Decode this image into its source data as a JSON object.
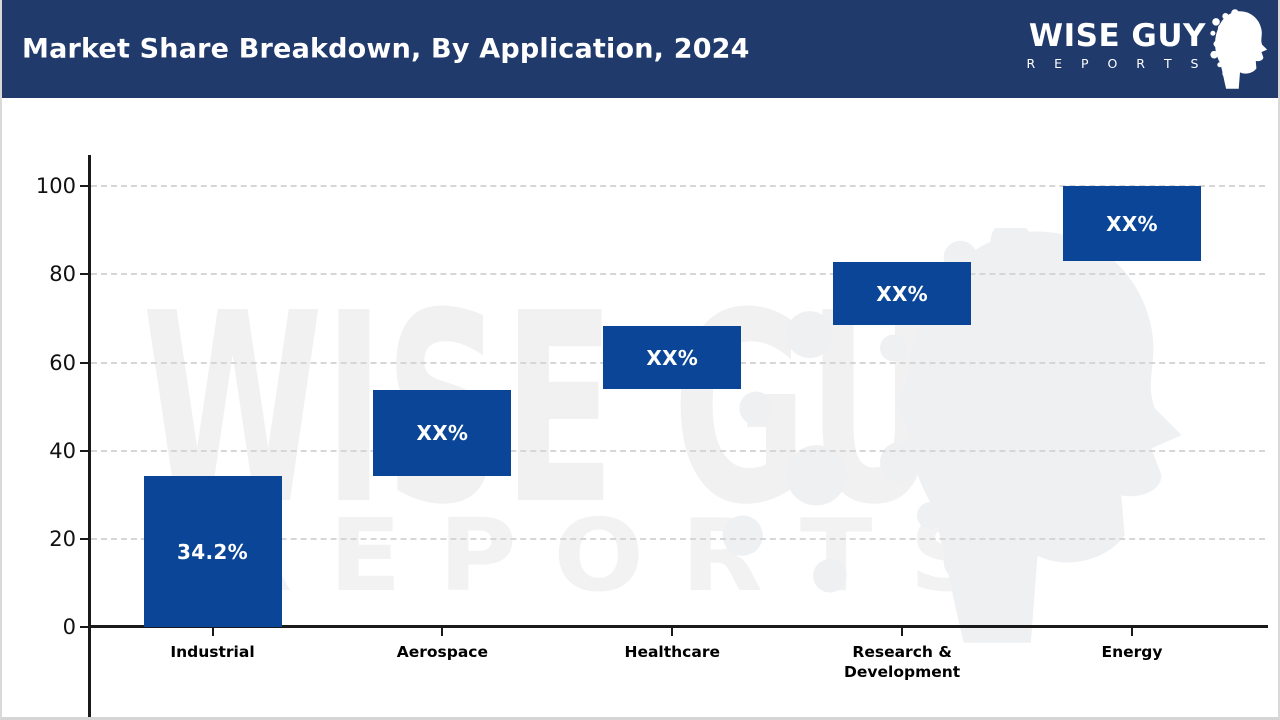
{
  "header": {
    "title": "Market Share Breakdown, By Application, 2024",
    "bg_color": "#213a6c",
    "logo": {
      "wordmark": "WISE GUY",
      "reports": "R E P O R T S"
    }
  },
  "watermark": {
    "line1": "WISE GUY",
    "line2": "R E P O R T S"
  },
  "chart_data": {
    "type": "bar",
    "subtype": "waterfall",
    "title": "Market Share Breakdown, By Application, 2024",
    "xlabel": "",
    "ylabel": "",
    "ylim": [
      0,
      100
    ],
    "yticks": [
      0,
      20,
      40,
      60,
      80,
      100
    ],
    "grid": "horizontal-dashed",
    "legend": "none",
    "bar_color": "#0a4597",
    "label_color": "#ffffff",
    "categories": [
      {
        "lines": [
          "Industrial"
        ]
      },
      {
        "lines": [
          "Aerospace"
        ]
      },
      {
        "lines": [
          "Healthcare"
        ]
      },
      {
        "lines": [
          "Research &",
          "Development"
        ]
      },
      {
        "lines": [
          "Energy"
        ]
      }
    ],
    "segments": [
      {
        "category": "Industrial",
        "start": 0,
        "end": 34.2,
        "value": 34.2,
        "label": "34.2%"
      },
      {
        "category": "Aerospace",
        "start": 34.2,
        "end": 53.7,
        "value": 19.5,
        "label": "XX%"
      },
      {
        "category": "Healthcare",
        "start": 54.0,
        "end": 68.3,
        "value": 14.3,
        "label": "XX%"
      },
      {
        "category": "Research & Development",
        "start": 68.5,
        "end": 82.8,
        "value": 14.3,
        "label": "XX%"
      },
      {
        "category": "Energy",
        "start": 83.0,
        "end": 100,
        "value": 17.0,
        "label": "XX%"
      }
    ]
  }
}
